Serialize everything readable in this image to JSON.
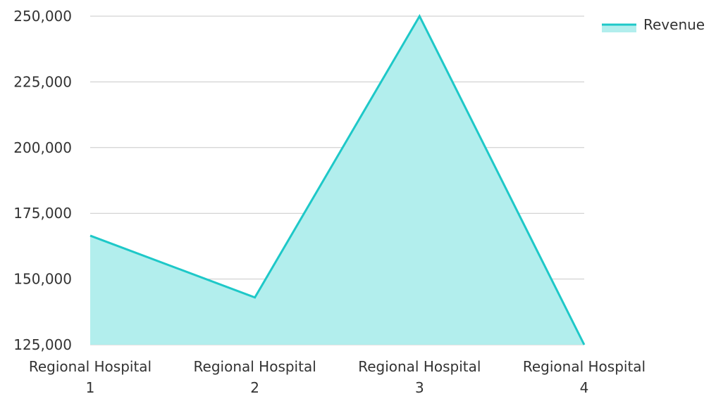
{
  "chart_data": {
    "type": "area",
    "categories": [
      "Regional Hospital 1",
      "Regional Hospital 2",
      "Regional Hospital 3",
      "Regional Hospital 4"
    ],
    "category_lines": [
      [
        "Regional Hospital",
        "1"
      ],
      [
        "Regional Hospital",
        "2"
      ],
      [
        "Regional Hospital",
        "3"
      ],
      [
        "Regional Hospital",
        "4"
      ]
    ],
    "series": [
      {
        "name": "Revenue",
        "values": [
          166500,
          143000,
          250000,
          125000
        ],
        "line_color": "#1ec8c8",
        "fill_color": "#b2eeed"
      }
    ],
    "ylim": [
      125000,
      250000
    ],
    "yticks": [
      125000,
      150000,
      175000,
      200000,
      225000,
      250000
    ],
    "ytick_labels": [
      "125,000",
      "150,000",
      "175,000",
      "200,000",
      "225,000",
      "250,000"
    ],
    "grid": true,
    "grid_color": "#c8c8c8",
    "legend_position": "top-right",
    "title": "",
    "xlabel": "",
    "ylabel": ""
  }
}
